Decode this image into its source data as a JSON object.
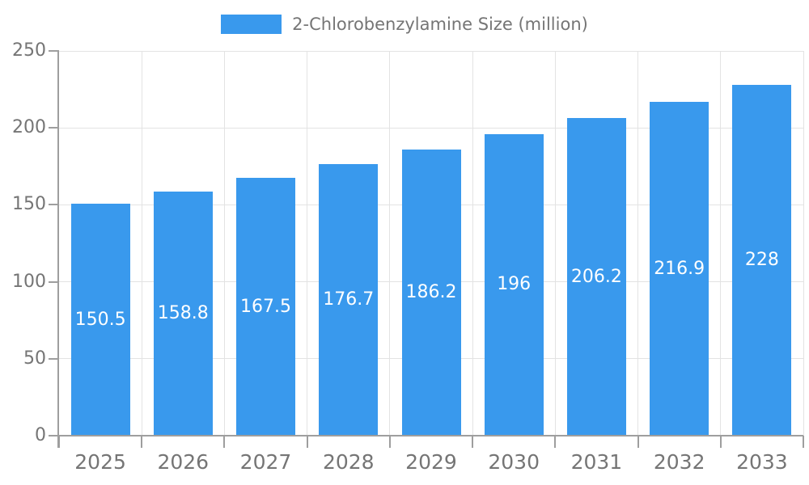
{
  "legend": {
    "label": "2-Chlorobenzylamine Size (million)"
  },
  "chart_data": {
    "type": "bar",
    "title": "2-Chlorobenzylamine Size (million)",
    "series_name": "2-Chlorobenzylamine Size (million)",
    "categories": [
      "2025",
      "2026",
      "2027",
      "2028",
      "2029",
      "2030",
      "2031",
      "2032",
      "2033"
    ],
    "values": [
      150.5,
      158.8,
      167.5,
      176.7,
      186.2,
      196,
      206.2,
      216.9,
      228
    ],
    "value_labels": [
      "150.5",
      "158.8",
      "167.5",
      "176.7",
      "186.2",
      "196",
      "206.2",
      "216.9",
      "228"
    ],
    "xlabel": "",
    "ylabel": "",
    "ylim": [
      0,
      250
    ],
    "yticks": [
      0,
      50,
      100,
      150,
      200,
      250
    ],
    "grid": true,
    "legend_position": "top",
    "bar_color": "#3999ED",
    "value_label_color": "#FFFFFF",
    "axis_text_color": "#757575",
    "grid_color": "#E3E3E3",
    "axis_line_color": "#9E9E9E",
    "background": "#FFFFFF"
  }
}
